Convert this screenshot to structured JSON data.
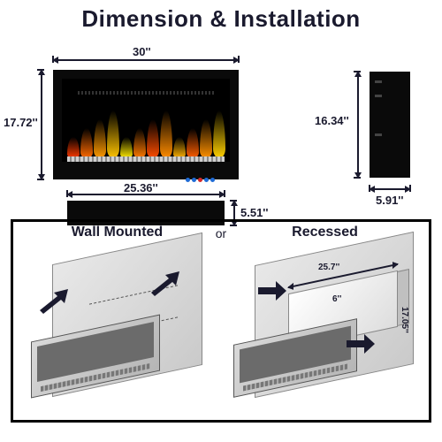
{
  "title": "Dimension & Installation",
  "front": {
    "width_label": "30''",
    "height_label": "17.72''",
    "width_in": 30,
    "height_in": 17.72,
    "flame_colors": [
      "#ff3b00",
      "#ff6a00",
      "#ff9a00",
      "#ffc400",
      "#ffea00",
      "#ff7a00",
      "#ff4d00",
      "#ff8c00",
      "#ffb300",
      "#ff5e00",
      "#ff9100",
      "#ffd000"
    ],
    "control_leds": [
      "#1e6bd6",
      "#1e6bd6",
      "#d62828",
      "#1e6bd6",
      "#1e6bd6"
    ]
  },
  "bottom_bar": {
    "width_label": "25.36''",
    "depth_label": "5.51''",
    "width_in": 25.36,
    "depth_in": 5.51
  },
  "side": {
    "height_label": "16.34''",
    "depth_label": "5.91''",
    "height_in": 16.34,
    "depth_in": 5.91
  },
  "install": {
    "left_title": "Wall Mounted",
    "or": "or",
    "right_title": "Recessed",
    "recess_width_label": "25.7''",
    "recess_height_label": "17.05''",
    "recess_depth_label": "6''",
    "recess_width_in": 25.7,
    "recess_height_in": 17.05,
    "recess_depth_in": 6
  },
  "colors": {
    "ink": "#1a1a2e",
    "unit_black": "#0a0a0a",
    "wall_light": "#e8e8e8",
    "wall_dark": "#cacaca",
    "metal_light": "#d9d9d9",
    "metal_dark": "#b5b5b5"
  }
}
